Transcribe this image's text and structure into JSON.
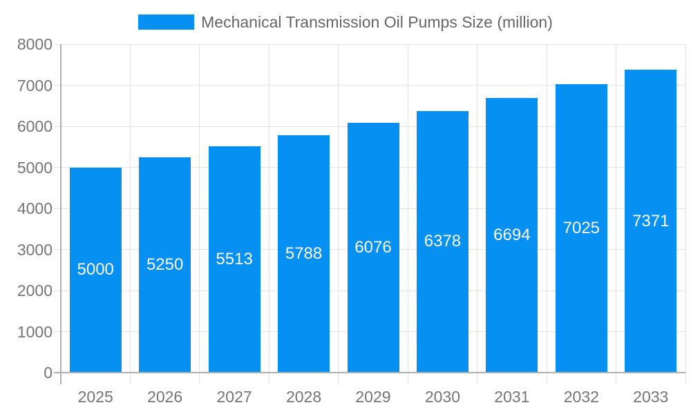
{
  "chart_data": {
    "type": "bar",
    "title": "Mechanical Transmission Oil Pumps Size (million)",
    "legend_position": "top",
    "legend_entries": [
      "Mechanical Transmission Oil Pumps Size (million)"
    ],
    "categories": [
      "2025",
      "2026",
      "2027",
      "2028",
      "2029",
      "2030",
      "2031",
      "2032",
      "2033"
    ],
    "series": [
      {
        "name": "Mechanical Transmission Oil Pumps Size (million)",
        "values": [
          5000,
          5250,
          5513,
          5788,
          6076,
          6378,
          6694,
          7025,
          7371
        ]
      }
    ],
    "bar_value_labels": [
      "5000",
      "5250",
      "5513",
      "5788",
      "6076",
      "6378",
      "6694",
      "7025",
      "7371"
    ],
    "xlabel": "",
    "ylabel": "",
    "ylim": [
      0,
      8000
    ],
    "yticks": [
      0,
      1000,
      2000,
      3000,
      4000,
      5000,
      6000,
      7000,
      8000
    ],
    "grid": true
  },
  "colors": {
    "bar": "#0590f2",
    "bar_value_label": "#ffffff",
    "grid_line": "#e3e3e3",
    "axis_line": "#b0b0b0",
    "tick_label": "#757575",
    "legend_text": "#666666",
    "background": "#ffffff"
  }
}
